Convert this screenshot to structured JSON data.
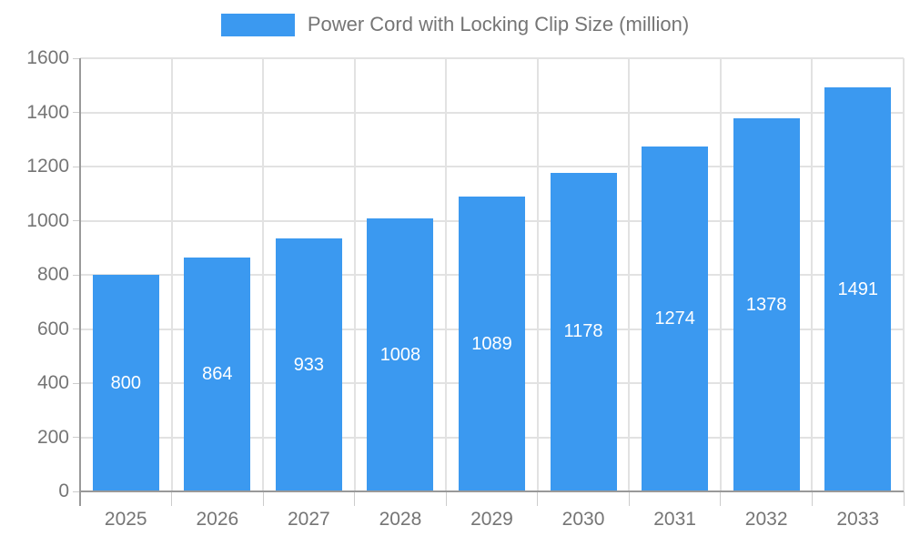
{
  "chart_data": {
    "type": "bar",
    "title": "Power Cord with Locking Clip Size (million)",
    "categories": [
      "2025",
      "2026",
      "2027",
      "2028",
      "2029",
      "2030",
      "2031",
      "2032",
      "2033"
    ],
    "values": [
      800,
      864,
      933,
      1008,
      1089,
      1178,
      1274,
      1378,
      1491
    ],
    "xlabel": "",
    "ylabel": "",
    "ylim": [
      0,
      1600
    ],
    "ytick_step": 200,
    "yticks": [
      0,
      200,
      400,
      600,
      800,
      1000,
      1200,
      1400,
      1600
    ],
    "grid": true,
    "legend_position": "top",
    "bar_color": "#3b99f0",
    "value_label_color": "#ffffff",
    "axis_text_color": "#757575",
    "gridline_color": "#e2e2e2",
    "axis_line_color": "#999999",
    "tick_color": "#cccccc"
  }
}
